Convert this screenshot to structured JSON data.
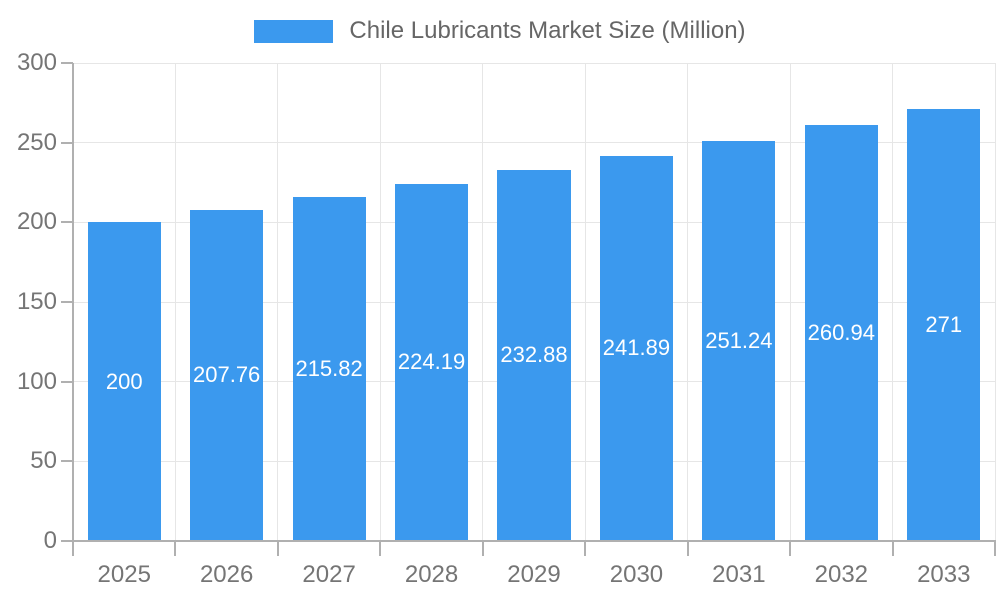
{
  "chart_data": {
    "type": "bar",
    "title": "Chile Lubricants Market Size (Million)",
    "categories": [
      "2025",
      "2026",
      "2027",
      "2028",
      "2029",
      "2030",
      "2031",
      "2032",
      "2033"
    ],
    "values": [
      200,
      207.76,
      215.82,
      224.19,
      232.88,
      241.89,
      251.24,
      260.94,
      271
    ],
    "value_labels": [
      "200",
      "207.76",
      "215.82",
      "224.19",
      "232.88",
      "241.89",
      "251.24",
      "260.94",
      "271"
    ],
    "y_tick_labels": [
      "0",
      "50",
      "100",
      "150",
      "200",
      "250",
      "300"
    ],
    "ylim": [
      0,
      300
    ],
    "ytick_interval": 50,
    "xlabel": "",
    "ylabel": "",
    "grid": true,
    "legend_position": "top",
    "colors": {
      "bar": "#3b99ee",
      "grid": "#e6e6e6",
      "axis": "#b0b0b0",
      "tick_label": "#757575",
      "legend_text": "#666666",
      "value_label": "#ffffff",
      "background": "#ffffff"
    }
  }
}
